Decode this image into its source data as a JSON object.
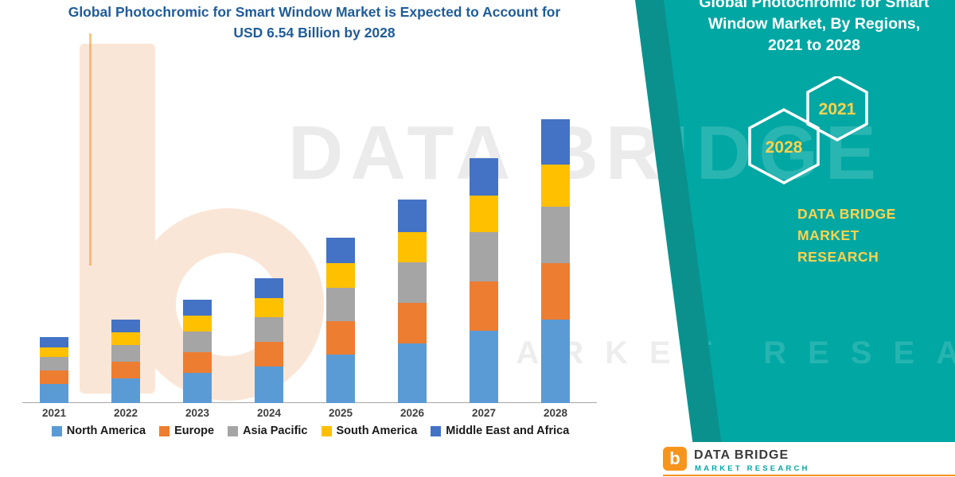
{
  "title": {
    "line1": "Global Photochromic for Smart Window Market is Expected to Account for",
    "line2": "USD 6.54 Billion by 2028"
  },
  "watermark": {
    "line1": "DATA BRIDGE",
    "line2": "MARKET RESEARCH"
  },
  "panel": {
    "heading": "Global Photochromic for Smart Window Market, By Regions, 2021 to 2028",
    "hex_back_year": "2028",
    "hex_front_year": "2021",
    "brand_line1": "DATA BRIDGE MARKET",
    "brand_line2": "RESEARCH"
  },
  "logo": {
    "icon_letter": "b",
    "name": "DATA BRIDGE",
    "sub": "MARKET RESEARCH"
  },
  "colors": {
    "teal_panel": "#01A7A3",
    "teal_stripe": "#0B918D",
    "title_blue": "#1F5C99",
    "brand_yellow": "#FFD34D",
    "logo_orange": "#F7941D",
    "logo_teal": "#01A7A3"
  },
  "chart_data": {
    "type": "bar",
    "stacked": true,
    "title": "Global Photochromic for Smart Window Market is Expected to Account for USD 6.54 Billion by 2028",
    "unit": "USD Billion",
    "xlabel": "",
    "ylabel": "",
    "ylim": [
      0,
      6.54
    ],
    "grid": false,
    "legend_position": "bottom",
    "categories": [
      "2021",
      "2022",
      "2023",
      "2024",
      "2025",
      "2026",
      "2027",
      "2028"
    ],
    "series": [
      {
        "name": "North America",
        "color": "#5B9BD5",
        "values": [
          0.44,
          0.57,
          0.7,
          0.85,
          1.12,
          1.38,
          1.67,
          1.93
        ]
      },
      {
        "name": "Europe",
        "color": "#ED7D31",
        "values": [
          0.31,
          0.39,
          0.48,
          0.57,
          0.77,
          0.94,
          1.14,
          1.3
        ]
      },
      {
        "name": "Asia Pacific",
        "color": "#A5A5A5",
        "values": [
          0.31,
          0.39,
          0.48,
          0.57,
          0.77,
          0.94,
          1.14,
          1.3
        ]
      },
      {
        "name": "South America",
        "color": "#FFC000",
        "values": [
          0.22,
          0.29,
          0.37,
          0.44,
          0.57,
          0.7,
          0.85,
          0.97
        ]
      },
      {
        "name": "Middle East and Africa",
        "color": "#4472C4",
        "values": [
          0.24,
          0.29,
          0.37,
          0.46,
          0.59,
          0.75,
          0.86,
          1.04
        ]
      }
    ],
    "totals": [
      1.52,
      1.93,
      2.4,
      2.89,
      3.82,
      4.71,
      5.66,
      6.54
    ]
  }
}
